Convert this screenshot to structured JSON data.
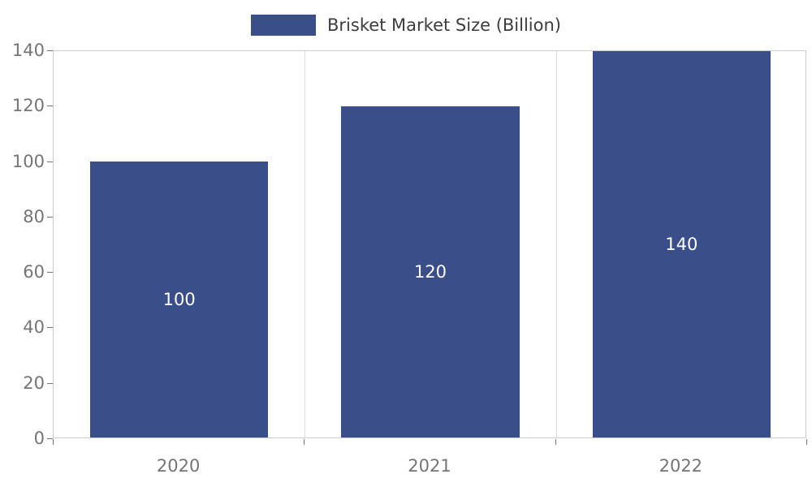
{
  "legend": {
    "label": "Brisket Market Size (Billion)"
  },
  "colors": {
    "bar": "#3a4e8a",
    "axis_text": "#757575",
    "grid": "#dddddd",
    "border": "#cccccc",
    "value_label": "#ffffff"
  },
  "chart_data": {
    "type": "bar",
    "title": "Brisket Market Size (Billion)",
    "categories": [
      "2020",
      "2021",
      "2022"
    ],
    "values": [
      100,
      120,
      140
    ],
    "bar_labels": [
      "100",
      "120",
      "140"
    ],
    "xlabel": "",
    "ylabel": "",
    "ylim": [
      0,
      140
    ],
    "ytick_step": 20,
    "ytick_labels": [
      "0",
      "20",
      "40",
      "60",
      "80",
      "100",
      "120",
      "140"
    ],
    "grid": "vertical-category-boundaries",
    "legend_position": "top-center",
    "bar_width_fraction": 0.71
  }
}
